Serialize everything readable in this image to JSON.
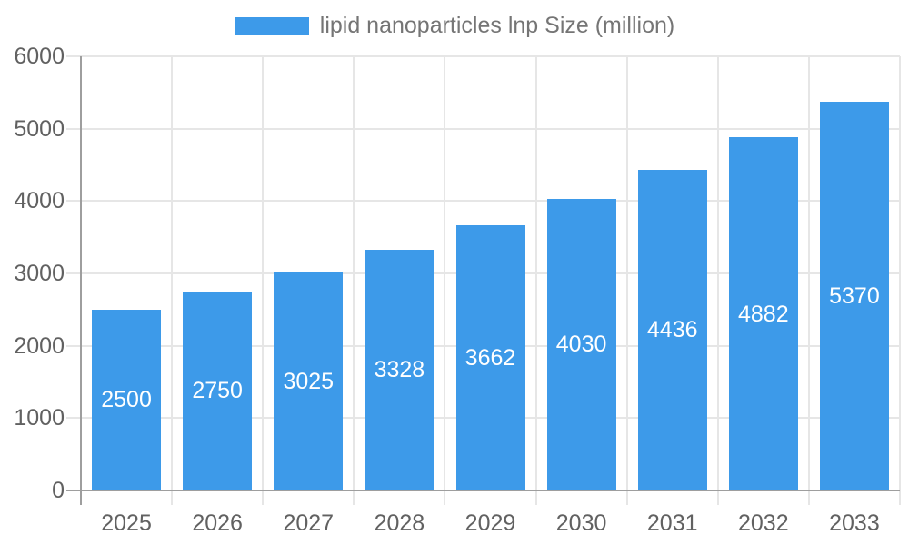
{
  "legend": {
    "label": "lipid nanoparticles lnp Size (million)"
  },
  "chart_data": {
    "type": "bar",
    "title": "lipid nanoparticles lnp Size (million)",
    "categories": [
      "2025",
      "2026",
      "2027",
      "2028",
      "2029",
      "2030",
      "2031",
      "2032",
      "2033"
    ],
    "values": [
      2500,
      2750,
      3025,
      3328,
      3662,
      4030,
      4436,
      4882,
      5370
    ],
    "xlabel": "",
    "ylabel": "",
    "ylim": [
      0,
      6000
    ],
    "yticks": [
      0,
      1000,
      2000,
      3000,
      4000,
      5000,
      6000
    ],
    "grid": true,
    "legend_position": "top",
    "colors": {
      "bar": "#3d9ae9",
      "value_label": "#ffffff",
      "axis_text": "#616161",
      "legend_text": "#757575",
      "gridline": "#e6e6e6",
      "axis_line": "#9e9e9e",
      "background": "#ffffff"
    }
  }
}
